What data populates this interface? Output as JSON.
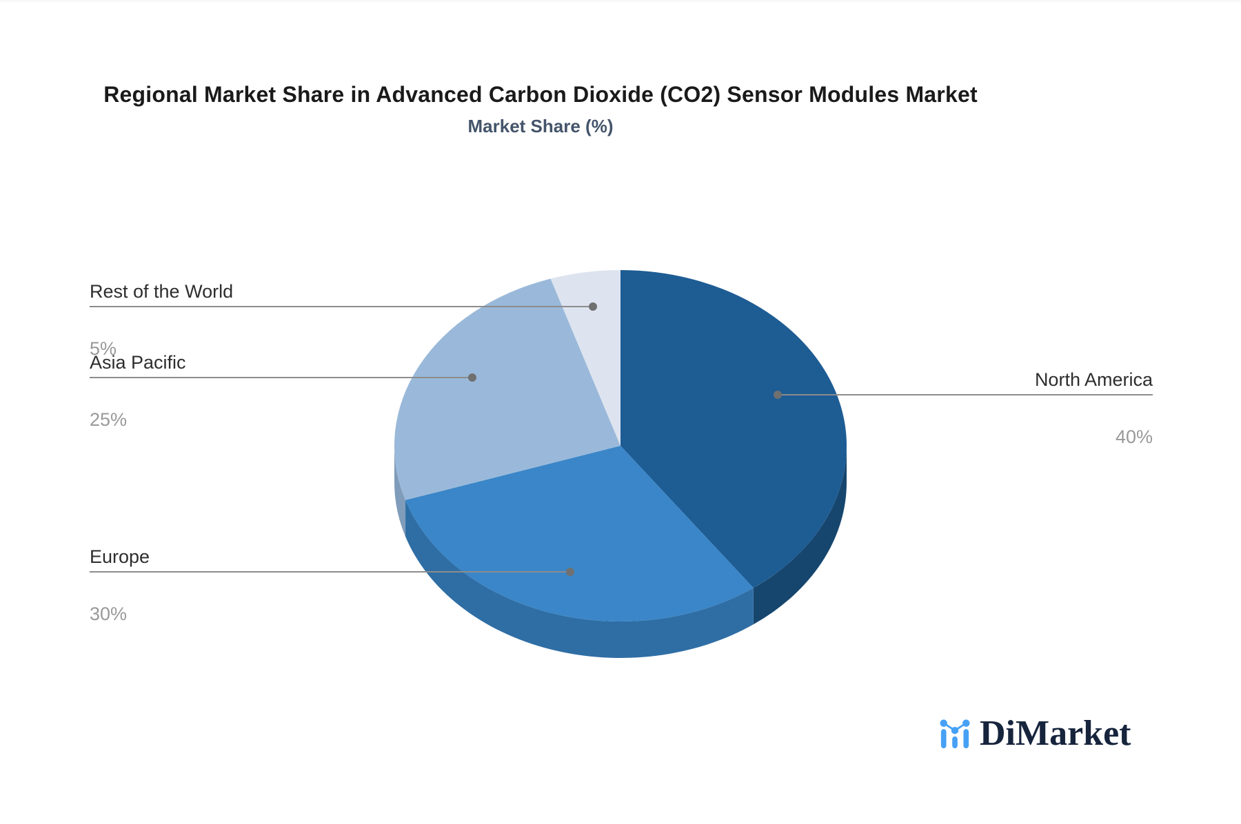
{
  "title": "Regional Market Share in Advanced Carbon Dioxide (CO2) Sensor Modules Market",
  "subtitle": "Market Share (%)",
  "watermark": {
    "brand": "DiMarket"
  },
  "chart_data": {
    "type": "pie",
    "variant": "3d",
    "title": "Regional Market Share in Advanced Carbon Dioxide (CO2) Sensor Modules Market",
    "subtitle": "Market Share (%)",
    "unit": "%",
    "start_angle_deg": 0,
    "direction": "clockwise",
    "legend_position": "callout-labels",
    "slices": [
      {
        "label": "North America",
        "value": 40,
        "pct": "40%",
        "color": "#1e5c94",
        "side_color": "#16466e"
      },
      {
        "label": "Europe",
        "value": 30,
        "pct": "30%",
        "color": "#3a86c8",
        "side_color": "#2f6ea5"
      },
      {
        "label": "Asia Pacific",
        "value": 25,
        "pct": "25%",
        "color": "#9ab9da",
        "side_color": "#7f9cba"
      },
      {
        "label": "Rest of the World",
        "value": 5,
        "pct": "5%",
        "color": "#dde4ef",
        "side_color": "#b9c4d4"
      }
    ],
    "callout_line_color": "#8c8c8c",
    "callout_dot_color": "#707070"
  }
}
